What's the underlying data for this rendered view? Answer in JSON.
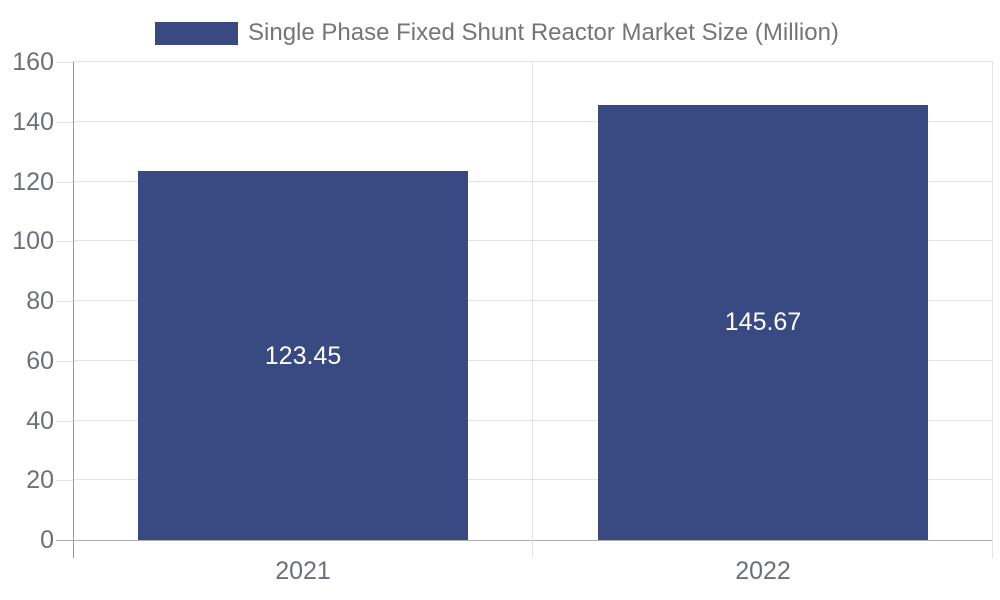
{
  "legend": {
    "label": "Single Phase Fixed Shunt Reactor Market Size (Million)"
  },
  "chart_data": {
    "type": "bar",
    "title": "Single Phase Fixed Shunt Reactor Market Size (Million)",
    "categories": [
      "2021",
      "2022"
    ],
    "series": [
      {
        "name": "Single Phase Fixed Shunt Reactor Market Size (Million)",
        "values": [
          123.45,
          145.67
        ]
      }
    ],
    "value_labels": [
      "123.45",
      "145.67"
    ],
    "xlabel": "",
    "ylabel": "",
    "ylim": [
      0,
      160
    ],
    "ytick_step": 20,
    "ytick_labels": [
      "0",
      "20",
      "40",
      "60",
      "80",
      "100",
      "120",
      "140",
      "160"
    ],
    "grid": true,
    "legend_position": "top",
    "colors": {
      "bar": "#394a83",
      "value_label_text": "#ffffff",
      "legend_text": "#757575",
      "axis_text": "#6e7079",
      "gridline": "#e3e3e3",
      "x_axis_line": "#adadad",
      "y_axis_line": "#999999"
    }
  }
}
